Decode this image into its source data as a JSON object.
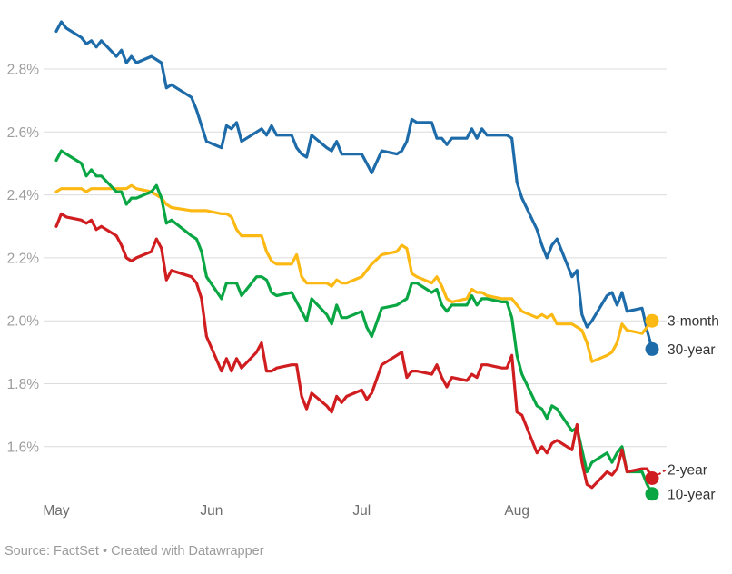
{
  "page": {
    "background": "#ffffff"
  },
  "footer": {
    "text": "Source: FactSet • Created with Datawrapper"
  },
  "chart_data": {
    "type": "line",
    "title": "",
    "xlabel": "",
    "ylabel": "",
    "legend_position": "end-of-line-labels",
    "x_axis": {
      "tick_labels": [
        "May",
        "Jun",
        "Jul",
        "Aug"
      ],
      "ticks": [
        {
          "label": "May",
          "day_offset": 0
        },
        {
          "label": "Jun",
          "day_offset": 31
        },
        {
          "label": "Jul",
          "day_offset": 61
        },
        {
          "label": "Aug",
          "day_offset": 92
        }
      ],
      "range_days": [
        0,
        119
      ]
    },
    "y_axis": {
      "unit": "%",
      "tick_labels": [
        "2.8%",
        "2.6%",
        "2.4%",
        "2.2%",
        "2.0%",
        "1.8%",
        "1.6%"
      ],
      "tick_values": [
        2.8,
        2.6,
        2.4,
        2.2,
        2.0,
        1.8,
        1.6
      ],
      "min": 1.44,
      "max": 2.96,
      "grid": true,
      "grid_color": "#dcdcdc"
    },
    "dates": [
      "May 1",
      "May 2",
      "May 3",
      "May 6",
      "May 7",
      "May 8",
      "May 9",
      "May 10",
      "May 13",
      "May 14",
      "May 15",
      "May 16",
      "May 17",
      "May 20",
      "May 21",
      "May 22",
      "May 23",
      "May 24",
      "May 28",
      "May 29",
      "May 30",
      "May 31",
      "Jun 3",
      "Jun 4",
      "Jun 5",
      "Jun 6",
      "Jun 7",
      "Jun 10",
      "Jun 11",
      "Jun 12",
      "Jun 13",
      "Jun 14",
      "Jun 17",
      "Jun 18",
      "Jun 19",
      "Jun 20",
      "Jun 21",
      "Jun 24",
      "Jun 25",
      "Jun 26",
      "Jun 27",
      "Jun 28",
      "Jul 1",
      "Jul 2",
      "Jul 3",
      "Jul 5",
      "Jul 8",
      "Jul 9",
      "Jul 10",
      "Jul 11",
      "Jul 12",
      "Jul 15",
      "Jul 16",
      "Jul 17",
      "Jul 18",
      "Jul 19",
      "Jul 22",
      "Jul 23",
      "Jul 24",
      "Jul 25",
      "Jul 26",
      "Jul 29",
      "Jul 30",
      "Jul 31",
      "Aug 1",
      "Aug 2",
      "Aug 5",
      "Aug 6",
      "Aug 7",
      "Aug 8",
      "Aug 9",
      "Aug 12",
      "Aug 13",
      "Aug 14",
      "Aug 15",
      "Aug 16",
      "Aug 19",
      "Aug 20",
      "Aug 21",
      "Aug 22",
      "Aug 23",
      "Aug 26",
      "Aug 27",
      "Aug 28"
    ],
    "series": [
      {
        "name": "30-year",
        "color": "#1d6ba9",
        "end_value": 1.91,
        "values": [
          2.92,
          2.95,
          2.93,
          2.9,
          2.88,
          2.89,
          2.87,
          2.89,
          2.84,
          2.86,
          2.82,
          2.84,
          2.82,
          2.84,
          2.83,
          2.82,
          2.74,
          2.75,
          2.71,
          2.67,
          2.62,
          2.57,
          2.55,
          2.62,
          2.61,
          2.63,
          2.57,
          2.6,
          2.61,
          2.59,
          2.62,
          2.59,
          2.59,
          2.55,
          2.53,
          2.52,
          2.59,
          2.55,
          2.54,
          2.57,
          2.53,
          2.53,
          2.53,
          2.5,
          2.47,
          2.54,
          2.53,
          2.54,
          2.57,
          2.64,
          2.63,
          2.63,
          2.58,
          2.58,
          2.56,
          2.58,
          2.58,
          2.61,
          2.58,
          2.61,
          2.59,
          2.59,
          2.59,
          2.58,
          2.44,
          2.39,
          2.29,
          2.24,
          2.2,
          2.24,
          2.26,
          2.14,
          2.16,
          2.02,
          1.98,
          2.0,
          2.08,
          2.09,
          2.05,
          2.09,
          2.03,
          2.04,
          1.97,
          1.91
        ]
      },
      {
        "name": "3-month",
        "color": "#fcb813",
        "end_value": 2.0,
        "values": [
          2.41,
          2.42,
          2.42,
          2.42,
          2.41,
          2.42,
          2.42,
          2.42,
          2.42,
          2.42,
          2.42,
          2.43,
          2.42,
          2.41,
          2.4,
          2.39,
          2.37,
          2.36,
          2.35,
          2.35,
          2.35,
          2.35,
          2.34,
          2.34,
          2.33,
          2.29,
          2.27,
          2.27,
          2.27,
          2.22,
          2.19,
          2.18,
          2.18,
          2.21,
          2.14,
          2.12,
          2.12,
          2.12,
          2.11,
          2.13,
          2.12,
          2.12,
          2.14,
          2.16,
          2.18,
          2.21,
          2.22,
          2.24,
          2.23,
          2.15,
          2.14,
          2.12,
          2.14,
          2.11,
          2.07,
          2.06,
          2.07,
          2.1,
          2.09,
          2.09,
          2.08,
          2.07,
          2.07,
          2.07,
          2.05,
          2.03,
          2.01,
          2.02,
          2.01,
          2.02,
          1.99,
          1.99,
          1.98,
          1.97,
          1.93,
          1.87,
          1.89,
          1.9,
          1.93,
          1.99,
          1.97,
          1.96,
          1.98,
          2.0
        ]
      },
      {
        "name": "10-year",
        "color": "#0aa644",
        "end_value": 1.45,
        "values": [
          2.51,
          2.54,
          2.53,
          2.5,
          2.46,
          2.48,
          2.46,
          2.46,
          2.41,
          2.41,
          2.37,
          2.39,
          2.39,
          2.41,
          2.43,
          2.39,
          2.31,
          2.32,
          2.27,
          2.26,
          2.22,
          2.14,
          2.07,
          2.12,
          2.12,
          2.12,
          2.08,
          2.14,
          2.14,
          2.13,
          2.09,
          2.08,
          2.09,
          2.06,
          2.03,
          2.0,
          2.07,
          2.02,
          1.99,
          2.05,
          2.01,
          2.01,
          2.03,
          1.98,
          1.95,
          2.04,
          2.05,
          2.06,
          2.07,
          2.12,
          2.12,
          2.09,
          2.1,
          2.05,
          2.03,
          2.05,
          2.05,
          2.08,
          2.05,
          2.07,
          2.07,
          2.06,
          2.06,
          2.01,
          1.89,
          1.83,
          1.73,
          1.72,
          1.69,
          1.73,
          1.72,
          1.65,
          1.66,
          1.59,
          1.52,
          1.55,
          1.58,
          1.55,
          1.58,
          1.6,
          1.52,
          1.52,
          1.48,
          1.45
        ]
      },
      {
        "name": "2-year",
        "color": "#d01d20",
        "end_value": 1.5,
        "values": [
          2.3,
          2.34,
          2.33,
          2.32,
          2.31,
          2.32,
          2.29,
          2.3,
          2.27,
          2.24,
          2.2,
          2.19,
          2.2,
          2.22,
          2.26,
          2.23,
          2.13,
          2.16,
          2.14,
          2.12,
          2.07,
          1.95,
          1.84,
          1.88,
          1.84,
          1.88,
          1.85,
          1.9,
          1.93,
          1.84,
          1.84,
          1.85,
          1.86,
          1.86,
          1.76,
          1.72,
          1.77,
          1.73,
          1.71,
          1.76,
          1.74,
          1.76,
          1.78,
          1.75,
          1.77,
          1.86,
          1.89,
          1.9,
          1.82,
          1.84,
          1.84,
          1.83,
          1.86,
          1.82,
          1.79,
          1.82,
          1.81,
          1.83,
          1.82,
          1.86,
          1.86,
          1.85,
          1.85,
          1.89,
          1.71,
          1.7,
          1.58,
          1.6,
          1.58,
          1.61,
          1.62,
          1.59,
          1.67,
          1.55,
          1.48,
          1.47,
          1.52,
          1.51,
          1.53,
          1.59,
          1.52,
          1.53,
          1.53,
          1.5
        ]
      }
    ]
  }
}
